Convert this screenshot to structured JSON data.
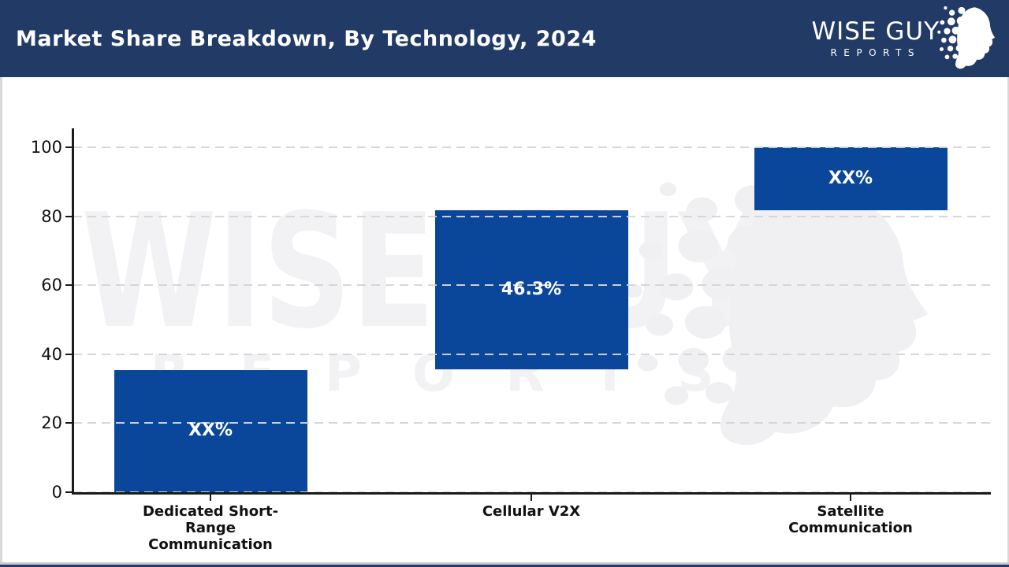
{
  "header": {
    "title": "Market Share Breakdown, By Technology, 2024",
    "logo": {
      "name": "WISE GUY",
      "tagline": "REPORTS"
    }
  },
  "watermark": {
    "name": "WISE GUY",
    "tagline": "REPORTS"
  },
  "chart_data": {
    "type": "bar",
    "variant": "waterfall-stacked-percentage",
    "title": "Market Share Breakdown, By Technology, 2024",
    "categories": [
      "Dedicated Short-Range Communication",
      "Cellular V2X",
      "Satellite Communication"
    ],
    "categories_display": [
      "Dedicated Short-\nRange\nCommunication",
      "Cellular V2X",
      "Satellite\nCommunication"
    ],
    "segments": [
      {
        "category": "Dedicated Short-Range Communication",
        "start": 0,
        "end": 35.5,
        "value_label": "XX%"
      },
      {
        "category": "Cellular V2X",
        "start": 35.5,
        "end": 81.8,
        "value_label": "46.3%"
      },
      {
        "category": "Satellite Communication",
        "start": 81.8,
        "end": 100,
        "value_label": "XX%"
      }
    ],
    "y_ticks": [
      0,
      20,
      40,
      60,
      80,
      100
    ],
    "ylim": [
      0,
      100
    ],
    "grid": "horizontal-dashed",
    "legend": "none",
    "bar_color": "#0a4699",
    "value_label_color": "#ffffff"
  },
  "colors": {
    "header_bg": "#213a66",
    "bar": "#0a4699",
    "grid": "#d5d5d5",
    "axis": "#1a1a1a",
    "watermark": "#f2f2f4"
  }
}
